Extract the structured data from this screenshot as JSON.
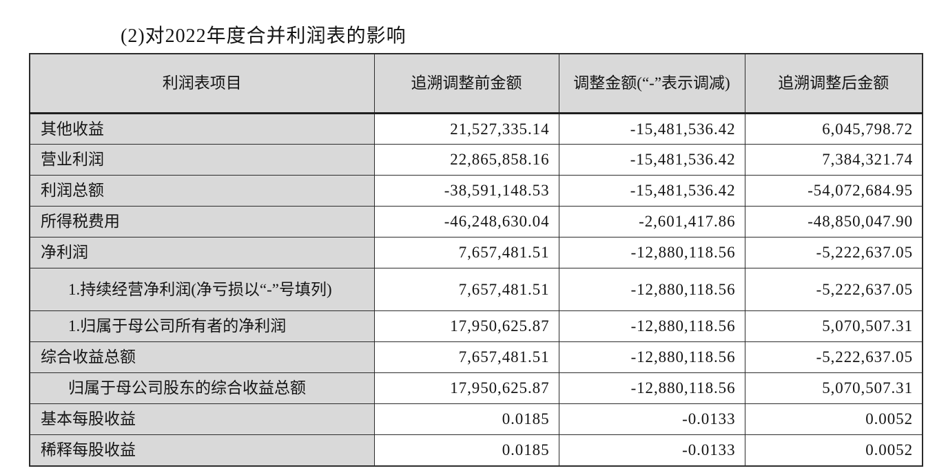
{
  "title": "(2)对2022年度合并利润表的影响",
  "colors": {
    "shaded_cell_bg": "#d9d9d9",
    "value_cell_bg": "#ffffff",
    "border": "#2a2a2a",
    "text": "#141414"
  },
  "table": {
    "headers": [
      "利润表项目",
      "追溯调整前金额",
      "调整金额(“-”表示调减)",
      "追溯调整后金额"
    ],
    "rows": [
      {
        "label": "其他收益",
        "indent": false,
        "tall": false,
        "before": "21,527,335.14",
        "adjust": "-15,481,536.42",
        "after": "6,045,798.72"
      },
      {
        "label": "营业利润",
        "indent": false,
        "tall": false,
        "before": "22,865,858.16",
        "adjust": "-15,481,536.42",
        "after": "7,384,321.74"
      },
      {
        "label": "利润总额",
        "indent": false,
        "tall": false,
        "before": "-38,591,148.53",
        "adjust": "-15,481,536.42",
        "after": "-54,072,684.95"
      },
      {
        "label": "所得税费用",
        "indent": false,
        "tall": false,
        "before": "-46,248,630.04",
        "adjust": "-2,601,417.86",
        "after": "-48,850,047.90"
      },
      {
        "label": "净利润",
        "indent": false,
        "tall": false,
        "before": "7,657,481.51",
        "adjust": "-12,880,118.56",
        "after": "-5,222,637.05"
      },
      {
        "label": "1.持续经营净利润(净亏损以“-”号填列)",
        "indent": true,
        "tall": true,
        "before": "7,657,481.51",
        "adjust": "-12,880,118.56",
        "after": "-5,222,637.05"
      },
      {
        "label": "1.归属于母公司所有者的净利润",
        "indent": true,
        "tall": false,
        "before": "17,950,625.87",
        "adjust": "-12,880,118.56",
        "after": "5,070,507.31"
      },
      {
        "label": "综合收益总额",
        "indent": false,
        "tall": false,
        "before": "7,657,481.51",
        "adjust": "-12,880,118.56",
        "after": "-5,222,637.05"
      },
      {
        "label": "归属于母公司股东的综合收益总额",
        "indent": true,
        "tall": false,
        "before": "17,950,625.87",
        "adjust": "-12,880,118.56",
        "after": "5,070,507.31"
      },
      {
        "label": "基本每股收益",
        "indent": false,
        "tall": false,
        "before": "0.0185",
        "adjust": "-0.0133",
        "after": "0.0052"
      },
      {
        "label": "稀释每股收益",
        "indent": false,
        "tall": false,
        "before": "0.0185",
        "adjust": "-0.0133",
        "after": "0.0052"
      }
    ]
  }
}
